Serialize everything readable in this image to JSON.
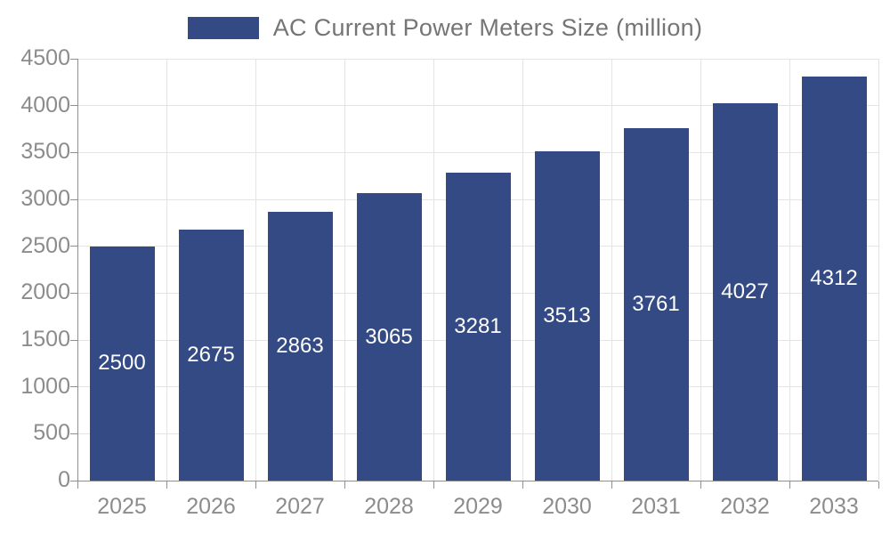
{
  "chart_data": {
    "type": "bar",
    "title": "AC Current Power Meters Size (million)",
    "categories": [
      "2025",
      "2026",
      "2027",
      "2028",
      "2029",
      "2030",
      "2031",
      "2032",
      "2033"
    ],
    "values": [
      2500,
      2675,
      2863,
      3065,
      3281,
      3513,
      3761,
      4027,
      4312
    ],
    "xlabel": "",
    "ylabel": "",
    "ylim": [
      0,
      4500
    ],
    "ytick_step": 500,
    "grid": true,
    "legend_position": "top-center",
    "colors": {
      "bar": "#344a85",
      "gridline": "#e4e4e4",
      "axis": "#8f8f8f",
      "tick_label": "#8c8c8c",
      "legend_text": "#757575",
      "bar_label": "#ffffff",
      "background": "#ffffff"
    }
  }
}
